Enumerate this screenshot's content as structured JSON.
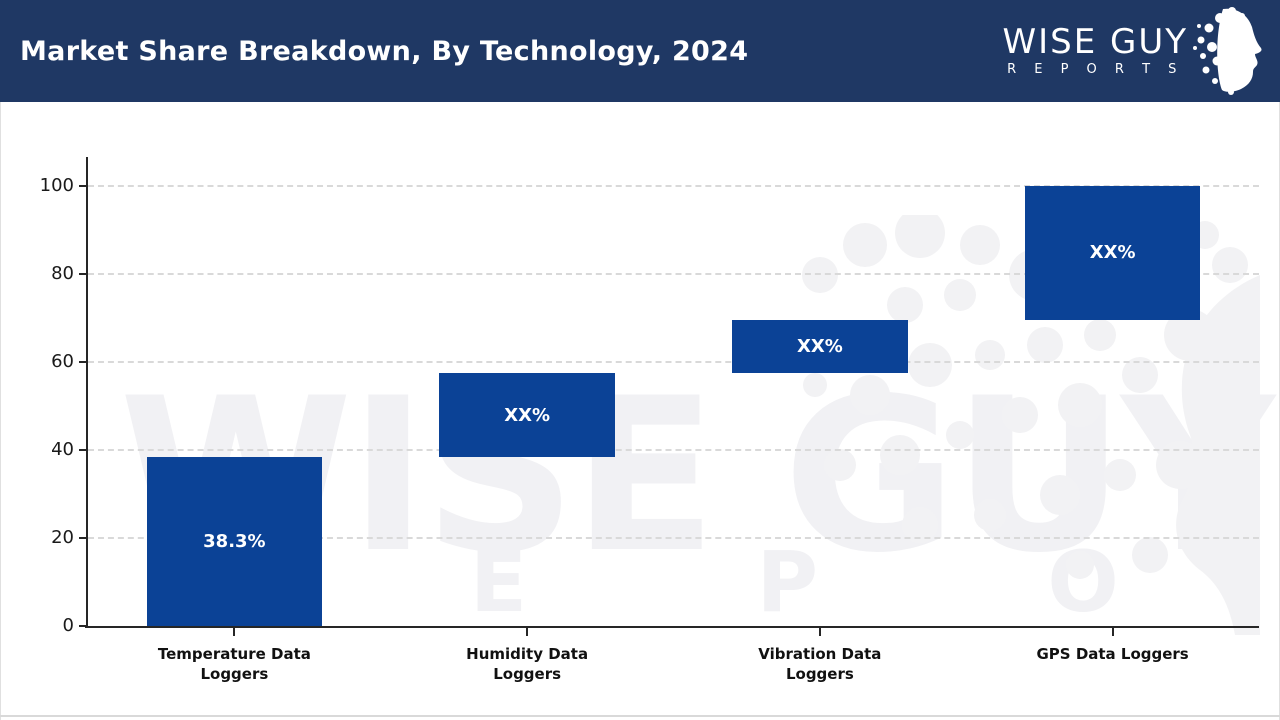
{
  "header": {
    "title": "Market Share Breakdown, By Technology, 2024",
    "logo": {
      "line1": "WISE GUY",
      "line2": "R E P O R T S"
    }
  },
  "watermark": {
    "line1": "WISE GUY",
    "line2": "R E P O R T S"
  },
  "colors": {
    "header_bg": "#1f3864",
    "bar": "#0b4296",
    "bar_label": "#ffffff",
    "grid": "#d9d9d9",
    "axis": "#262626",
    "watermark": "#f1f1f4"
  },
  "chart_data": {
    "type": "bar",
    "subtype": "waterfall",
    "title": "Market Share Breakdown, By Technology, 2024",
    "categories": [
      "Temperature Data\nLoggers",
      "Humidity Data\nLoggers",
      "Vibration Data\nLoggers",
      "GPS Data Loggers"
    ],
    "segments": [
      {
        "category": "Temperature Data Loggers",
        "start": 0,
        "end": 38.3,
        "label": "38.3%"
      },
      {
        "category": "Humidity Data Loggers",
        "start": 38.3,
        "end": 57.5,
        "label": "XX%"
      },
      {
        "category": "Vibration Data Loggers",
        "start": 57.5,
        "end": 69.5,
        "label": "XX%"
      },
      {
        "category": "GPS Data Loggers",
        "start": 69.5,
        "end": 100,
        "label": "XX%"
      }
    ],
    "yticks": [
      0,
      20,
      40,
      60,
      80,
      100
    ],
    "ylim": [
      0,
      106.5
    ],
    "xlabel": "",
    "ylabel": "",
    "grid": "dashed-horizontal",
    "legend": null
  }
}
